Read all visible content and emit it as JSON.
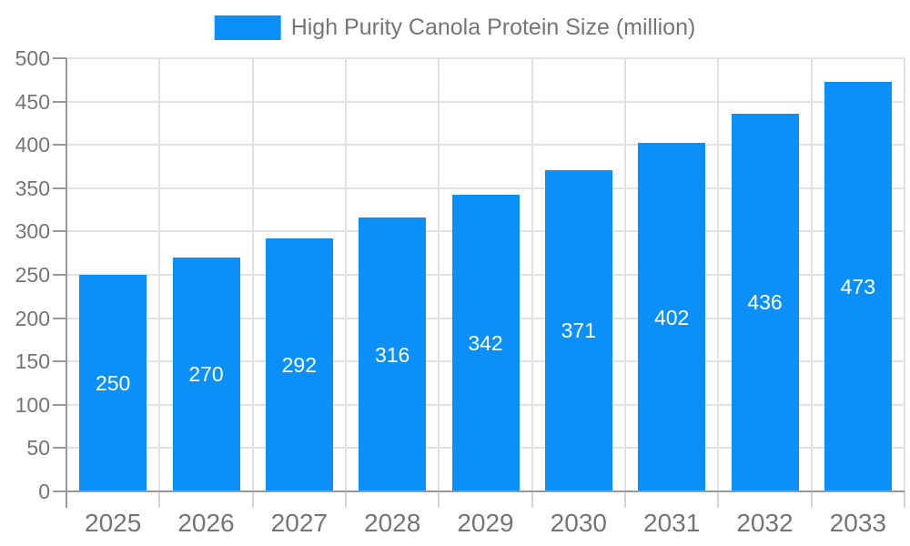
{
  "legend": {
    "label": "High Purity Canola Protein Size (million)"
  },
  "chart_data": {
    "type": "bar",
    "title": "High Purity Canola Protein Size (million)",
    "series_name": "High Purity Canola Protein Size (million)",
    "categories": [
      "2025",
      "2026",
      "2027",
      "2028",
      "2029",
      "2030",
      "2031",
      "2032",
      "2033"
    ],
    "values": [
      250,
      270,
      292,
      316,
      342,
      371,
      402,
      436,
      473
    ],
    "yticks": [
      0,
      50,
      100,
      150,
      200,
      250,
      300,
      350,
      400,
      450,
      500
    ],
    "ylim": [
      0,
      500
    ],
    "xlabel": "",
    "ylabel": "",
    "grid": true,
    "legend_position": "top-center",
    "value_labels": "inside-center",
    "colors": {
      "bar": "#0a90f8",
      "value_label": "#ffffff",
      "axis_label": "#757575",
      "legend_text": "#757575",
      "gridline": "#e2e2e2",
      "axis_line": "#999999",
      "x_tick": "#d4d4d4",
      "background": "#ffffff"
    }
  }
}
